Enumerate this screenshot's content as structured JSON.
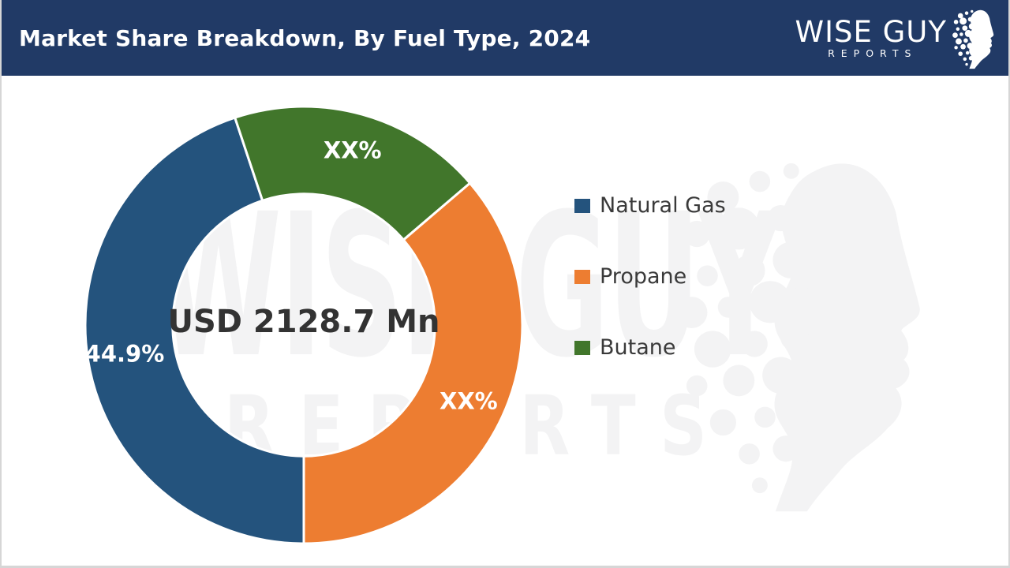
{
  "header": {
    "title": "Market Share Breakdown, By Fuel Type, 2024",
    "logo": {
      "brand": "WISE GUY",
      "sub": "REPORTS"
    }
  },
  "watermark": {
    "line1": "WISE GUY",
    "line2": "REPORTS"
  },
  "chart_data": {
    "type": "pie",
    "subtype": "donut",
    "title": "Market Share Breakdown, By Fuel Type, 2024",
    "center_label": "USD 2128.7 Mn",
    "start_angle_deg": 180,
    "direction": "clockwise",
    "donut_hole_ratio": 0.6,
    "slices": [
      {
        "name": "Natural Gas",
        "value_pct": 44.9,
        "label": "44.9%",
        "color": "#24537d"
      },
      {
        "name": "Butane",
        "value_pct": 18.85,
        "label": "XX%",
        "color": "#41762b"
      },
      {
        "name": "Propane",
        "value_pct": 36.25,
        "label": "XX%",
        "color": "#ed7d31"
      }
    ],
    "legend": [
      {
        "name": "Natural Gas",
        "color": "#24537d"
      },
      {
        "name": "Propane",
        "color": "#ed7d31"
      },
      {
        "name": "Butane",
        "color": "#41762b"
      }
    ],
    "legend_position": "right",
    "gap_color": "#ffffff"
  },
  "colors": {
    "header_bg": "#213a66",
    "header_text": "#ffffff",
    "center_text": "#333333",
    "legend_text": "#3a3a3a",
    "watermark": "#f3f3f4",
    "page_border": "#d6d6d6"
  }
}
